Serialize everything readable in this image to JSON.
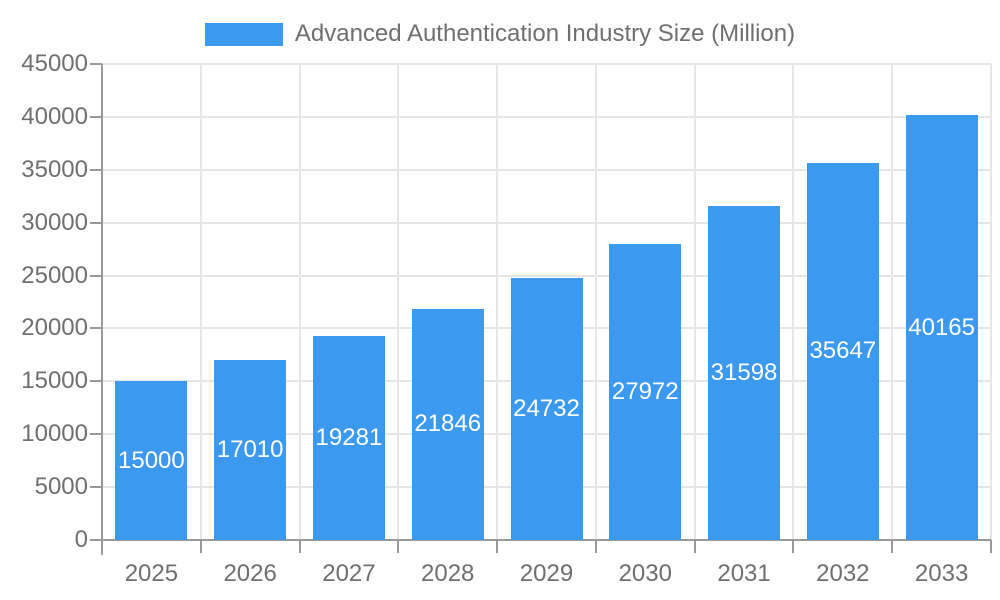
{
  "chart_data": {
    "type": "bar",
    "title": "Advanced Authentication Industry Size (Million)",
    "categories": [
      "2025",
      "2026",
      "2027",
      "2028",
      "2029",
      "2030",
      "2031",
      "2032",
      "2033"
    ],
    "values": [
      15000,
      17010,
      19281,
      21846,
      24732,
      27972,
      31598,
      35647,
      40165
    ],
    "xlabel": "",
    "ylabel": "",
    "ylim": [
      0,
      45000
    ],
    "ytick_step": 5000,
    "ytick_labels": [
      "0",
      "5000",
      "10000",
      "15000",
      "20000",
      "25000",
      "30000",
      "35000",
      "40000",
      "45000"
    ],
    "grid": true,
    "legend_position": "top",
    "value_labels_inside_bars": true,
    "colors": {
      "bar": "#3b99f0",
      "value_label": "#ffffff",
      "axis_text": "#6f6f6f",
      "gridline": "#e6e6e6",
      "axis_line": "#999999",
      "background": "#ffffff"
    }
  }
}
